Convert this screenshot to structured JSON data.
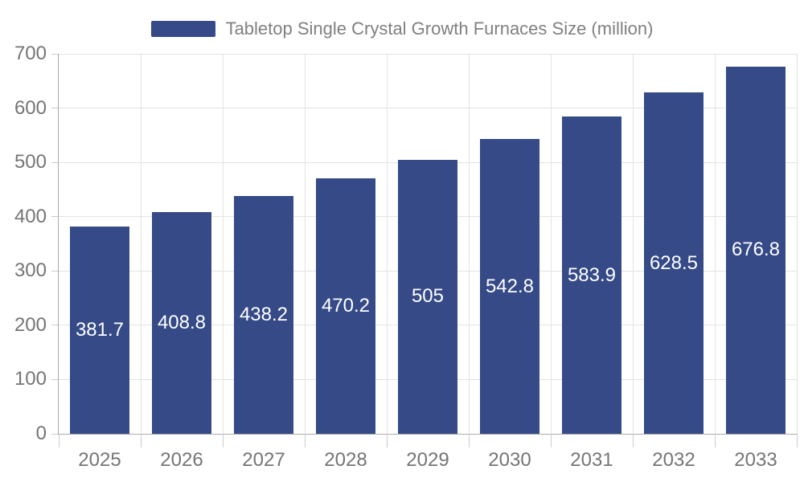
{
  "chart_data": {
    "type": "bar",
    "title": "Tabletop Single Crystal Growth Furnaces Size (million)",
    "categories": [
      "2025",
      "2026",
      "2027",
      "2028",
      "2029",
      "2030",
      "2031",
      "2032",
      "2033"
    ],
    "series": [
      {
        "name": "Tabletop Single Crystal Growth Furnaces Size (million)",
        "values": [
          381.7,
          408.8,
          438.2,
          470.2,
          505,
          542.8,
          583.9,
          628.5,
          676.8
        ]
      }
    ],
    "xlabel": "",
    "ylabel": "",
    "ylim": [
      0,
      700
    ],
    "y_ticks": [
      0,
      100,
      200,
      300,
      400,
      500,
      600,
      700
    ],
    "grid": true,
    "legend_position": "top-center",
    "value_labels": "centered-inside-bars",
    "colors": {
      "bar": "#354a87",
      "value_label": "#ffffff",
      "axis_label": "#757575",
      "legend_text": "#808080",
      "gridline": "#e3e3e3",
      "axis_line": "#a9a9a9",
      "tick": "#cccccc",
      "background": "#ffffff"
    }
  }
}
